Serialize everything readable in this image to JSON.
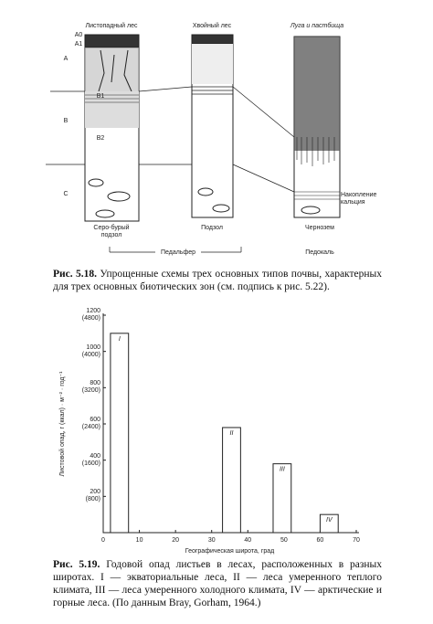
{
  "figure1": {
    "columns": [
      "Листопадный лес",
      "Хвойный лес",
      "Луга и пастбища"
    ],
    "horizons": [
      "A0",
      "A1",
      "A",
      "B1",
      "B",
      "B2",
      "C"
    ],
    "soils": [
      "Серо-бурый\nподзол",
      "Подзол",
      "Чернозем"
    ],
    "calcium": "Накопление\nкальция",
    "groups": [
      "Педальфер",
      "Педокаль"
    ],
    "caption": {
      "number": "Рис. 5.18.",
      "text": "Упрощенные схемы трех основных типов почвы, характерных для трех основных биотических зон (см. подпись к рис. 5.22)."
    }
  },
  "chart_data": {
    "type": "bar",
    "xlabel": "Географическая широта, град",
    "ylabel": "Листовой опад, г (ккал) · м⁻² · год⁻¹",
    "categories": [
      "I",
      "II",
      "III",
      "IV"
    ],
    "x_start": [
      2,
      33,
      47,
      60
    ],
    "x_end": [
      7,
      38,
      52,
      65
    ],
    "values": [
      1100,
      580,
      380,
      100
    ],
    "color": "#ffffff",
    "xlim": [
      0,
      70
    ],
    "xticks": [
      0,
      10,
      20,
      30,
      40,
      50,
      60,
      70
    ],
    "ylim": [
      0,
      1200
    ],
    "yticks": [
      {
        "value": 200,
        "label": "200\n(800)"
      },
      {
        "value": 400,
        "label": "400\n(1600)"
      },
      {
        "value": 600,
        "label": "600\n(2400)"
      },
      {
        "value": 800,
        "label": "800\n(3200)"
      },
      {
        "value": 1000,
        "label": "1000\n(4000)"
      },
      {
        "value": 1200,
        "label": "1200\n(4800)"
      }
    ]
  },
  "figure2": {
    "caption": {
      "number": "Рис. 5.19.",
      "text": "Годовой опад листьев в лесах, расположенных в разных широтах. I — экваториальные леса, II — леса умеренного теплого климата, III — леса умеренного холодного климата, IV — арктические и горные леса. (По данным Bray, Gorham, 1964.)"
    }
  }
}
